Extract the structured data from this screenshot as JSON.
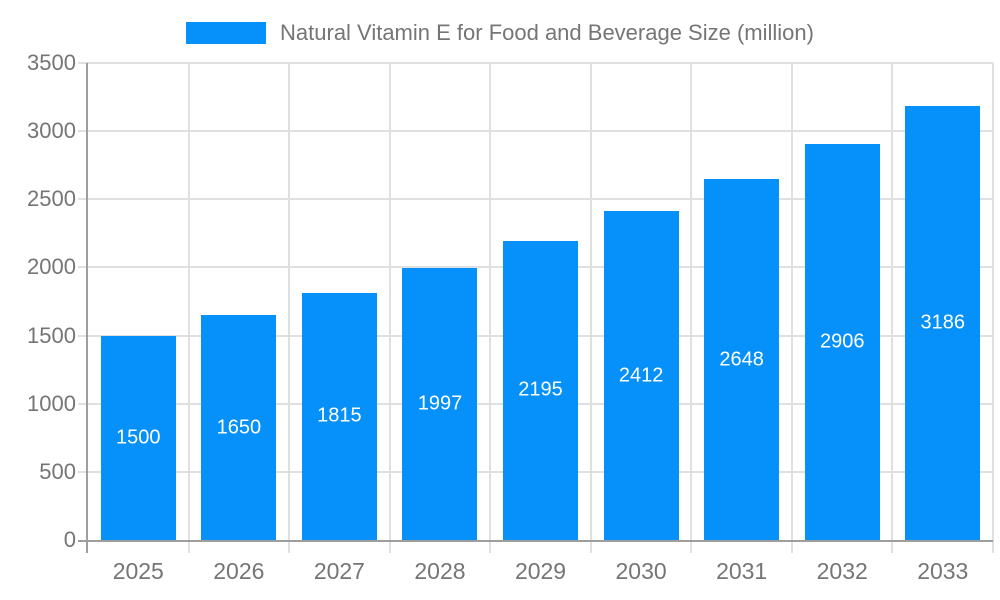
{
  "legend": {
    "label": "Natural Vitamin E for Food and Beverage Size (million)"
  },
  "colors": {
    "bar": "#0690f9",
    "grid": "#e0e0e0",
    "axis": "#9e9e9e",
    "text": "#757575",
    "bar_label": "#ffffff"
  },
  "chart_data": {
    "type": "bar",
    "title": "Natural Vitamin E for Food and Beverage Size (million)",
    "series_name": "Natural Vitamin E for Food and Beverage Size (million)",
    "categories": [
      "2025",
      "2026",
      "2027",
      "2028",
      "2029",
      "2030",
      "2031",
      "2032",
      "2033"
    ],
    "values": [
      1500,
      1650,
      1815,
      1997,
      2195,
      2412,
      2648,
      2906,
      3186
    ],
    "xlabel": "",
    "ylabel": "",
    "ylim": [
      0,
      3500
    ],
    "ytick_step": 500,
    "yticks": [
      0,
      500,
      1000,
      1500,
      2000,
      2500,
      3000,
      3500
    ],
    "grid": true,
    "legend_position": "top",
    "bar_label_position": "center"
  }
}
